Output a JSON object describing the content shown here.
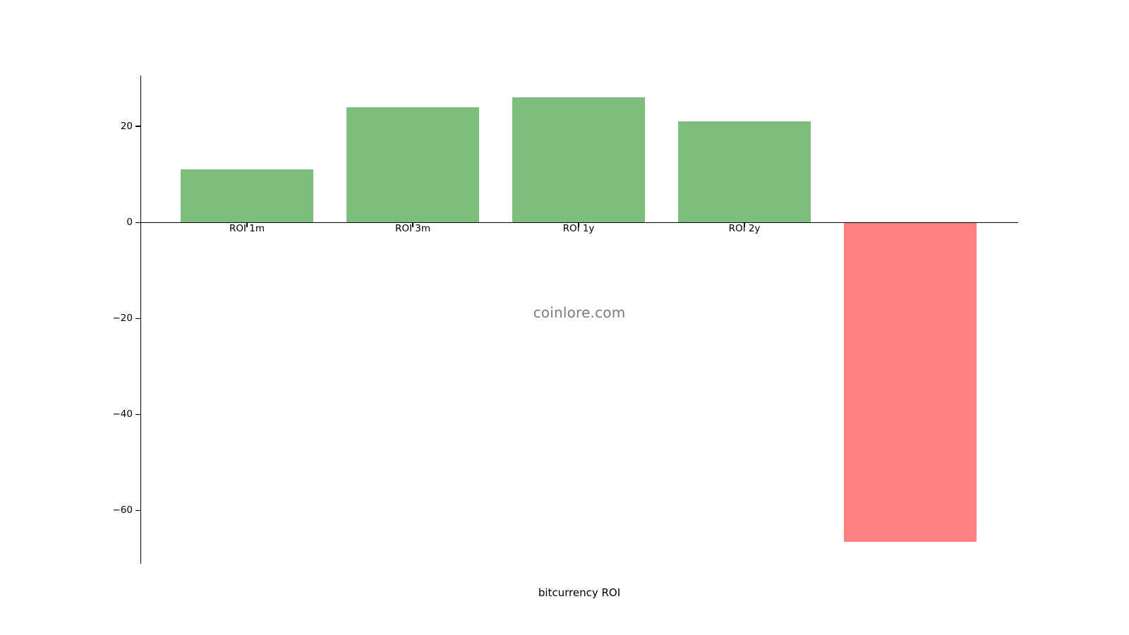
{
  "page": {
    "background_color": "#ffffff"
  },
  "chart_data": {
    "type": "bar",
    "title": "bitcurrency ROI",
    "watermark": "coinlore.com",
    "categories": [
      "ROI 1m",
      "ROI 3m",
      "ROI 1y",
      "ROI 2y",
      ""
    ],
    "values": [
      11,
      24,
      26,
      21,
      -66.5
    ],
    "series": [
      {
        "name": "bitcurrency ROI %",
        "values": [
          11,
          24,
          26,
          21,
          -66.5
        ]
      }
    ],
    "bar_colors": [
      "#7cbe7c",
      "#7cbe7c",
      "#7cbe7c",
      "#7cbe7c",
      "#fd8181"
    ],
    "positive_color": "#7cbe7c",
    "negative_color": "#fd8181",
    "yticks": [
      {
        "label": "20",
        "value": 20
      },
      {
        "label": "0",
        "value": 0
      },
      {
        "label": "−20",
        "value": -20
      },
      {
        "label": "−40",
        "value": -40
      },
      {
        "label": "−60",
        "value": -60
      }
    ],
    "ylim": [
      -71.1,
      30.6
    ],
    "xlabel": "",
    "ylabel": "",
    "grid": false,
    "legend": null,
    "axis_color": "#000000",
    "tick_text_color": "#000000",
    "watermark_color": "#7b7b7b"
  }
}
